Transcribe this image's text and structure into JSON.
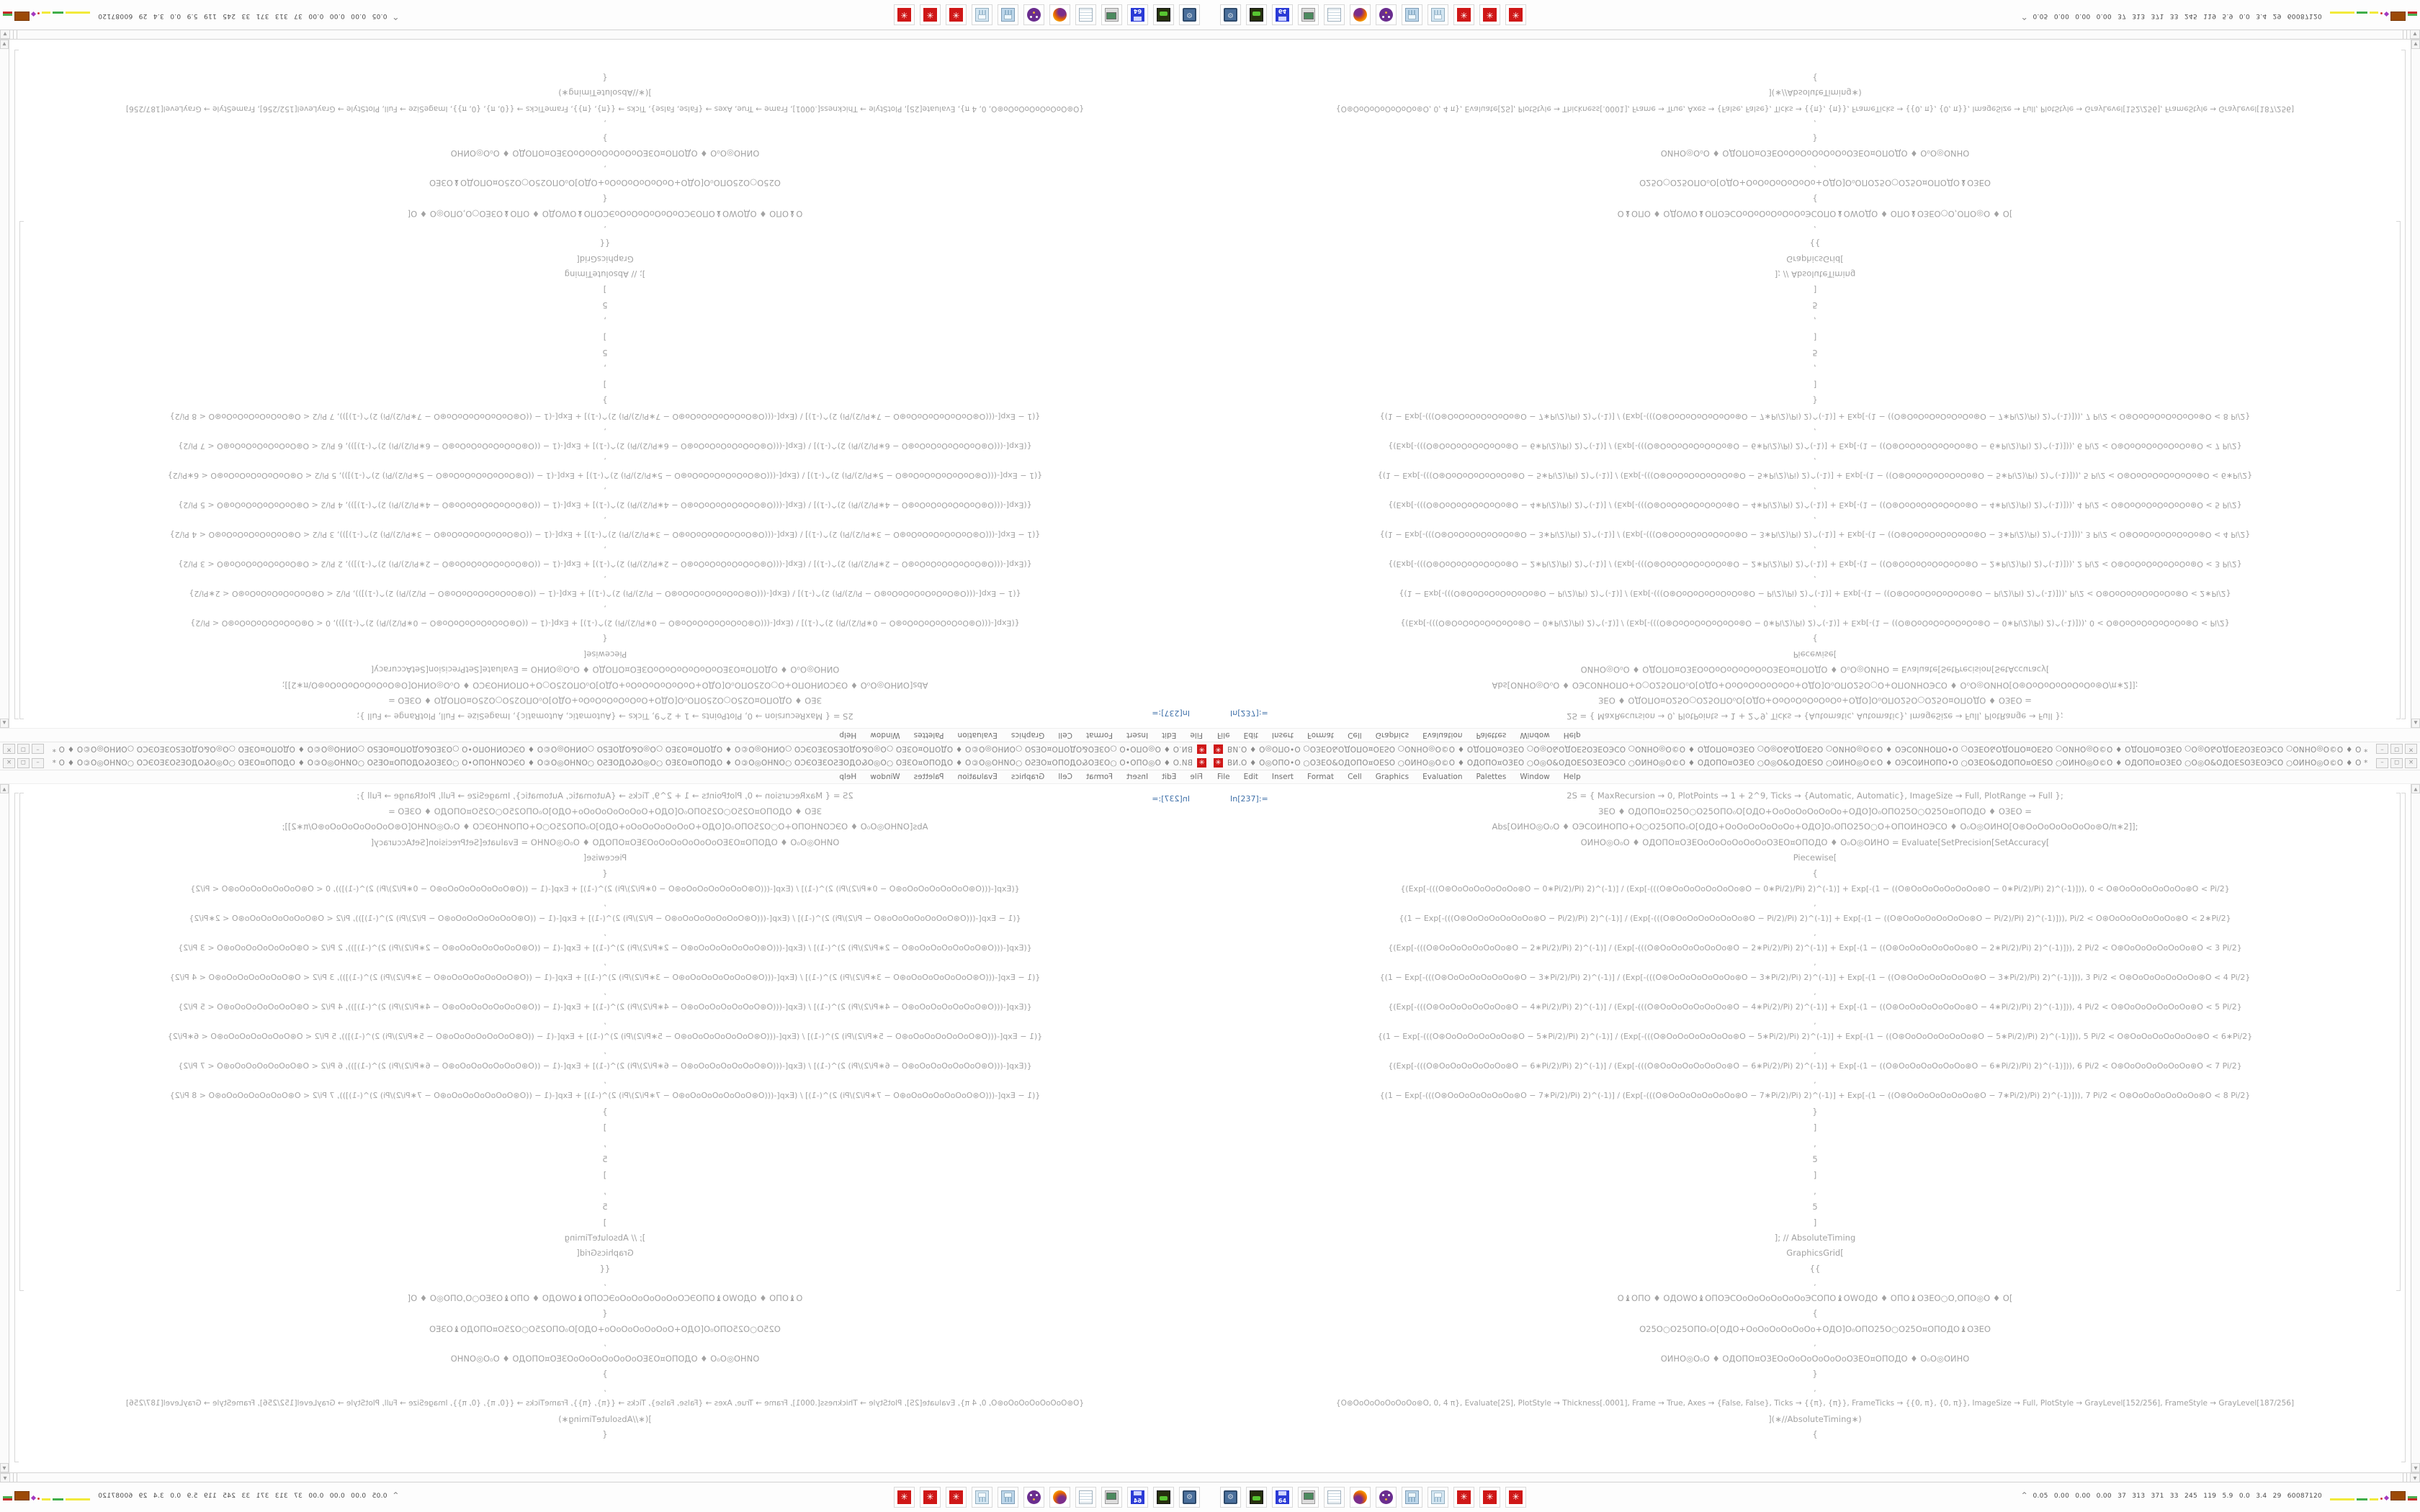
{
  "colors": {
    "accent_red": "#cf1717",
    "in_label_blue": "#3e6fa8",
    "code_gray": "#a2a2a2",
    "titlebar_bg": "#fafafa",
    "meter_yellow": "#f2ea3a",
    "meter_green": "#3fae49",
    "meter_brown": "#9c4a07",
    "meter_red": "#c62828",
    "meter_purple": "#a338c0"
  },
  "window": {
    "icon_glyph": "✳",
    "title_garbled": "ВИ.О ♦ О◎ОΠО•О ○ОЗЕО&ОДОΠО¤ОЕЅО ○ОИНО◎О©О ♦ ОДОΠО¤ОЗЕО ○О◎О&ОДОЕЅОЗЕОЭСО ○ОИНО◎О©О ♦ ОДОΠО¤ОЗЕО ○О◎О&ОДОЕЅО ○ОИНО◎О©О ♦ ОЭСОИНОΠО•О ○ОЗЕО&ОДОΠО¤ОЕЅО ○ОИНО◎О©О ♦ ОДОΠО¤ОЗЕО ○О◎О&ОДОЕЅОЗЕОЭСО ○ОИНО◎О©О ♦ О ",
    "title_suffix": "* - Wolfram Mathematica 12.2",
    "buttons": {
      "minimize": "–",
      "maximize": "◻",
      "close": "×"
    }
  },
  "menu": {
    "items": [
      "File",
      "Edit",
      "Insert",
      "Format",
      "Cell",
      "Graphics",
      "Evaluation",
      "Palettes",
      "Window",
      "Help"
    ]
  },
  "notebook": {
    "cell_label": "In[237]:=",
    "lines": [
      {
        "c": "hdr",
        "t": "2S = {  MaxRecursion → 0, PlotPoints → 1 + 2^9, Ticks → {Automatic, Automatic}, ImageSize → Full, PlotRange → Full  };"
      },
      {
        "c": "hdr",
        "t": "ЗЕО ♦ ОДОΠО¤О25О○О25ОΠО₀О[ОДО+ОоОоОоОоОоОо+ОДО]О₀ОΠО25О○О25О¤ОΠОДО ♦ ОЗЕО  ="
      },
      {
        "c": "hdr",
        "t": "Abs[ОИНО◎О₀О ♦ ОЭСОИНОΠО+О○О25ОΠО₀О[ОДО+ОоОоОоОоОоОо+ОДО]О₀ОΠО25О○О+ОΠОИНОЭСО ♦ О₀О◎ОИНО[О⊛ОоОоОоОоОоОо⊛О/π∗2]];"
      },
      {
        "c": "hdr",
        "t": "ОИНО◎О₀О ♦ ОДОΠО¤ОЗЕОоОоОоОоОоОоОЗЕО¤ОΠОДО ♦ О₀О◎ОИНО = Evaluate[SetPrecision[SetAccuracy["
      },
      {
        "c": "hdr",
        "t": "Piecewise["
      },
      {
        "c": "hdr",
        "t": "{"
      },
      {
        "c": "row",
        "t": "{(Exp[-(((О⊛ОоОоОоОоОоОо⊛О − 0∗Pi/2)/Pi) 2)^(-1)] / (Exp[-(((О⊛ОоОоОоОоОоОо⊛О − 0∗Pi/2)/Pi) 2)^(-1)] + Exp[-(1 − ((О⊛ОоОоОоОоОоОо⊛О − 0∗Pi/2)/Pi) 2)^(-1)])), 0 < О⊛ОоОоОоОоОоОо⊛О < Pi/2}"
      },
      {
        "c": "sep",
        "t": ","
      },
      {
        "c": "row",
        "t": "{(1 − Exp[-(((О⊛ОоОоОоОоОоОо⊛О − Pi/2)/Pi) 2)^(-1)] / (Exp[-(((О⊛ОоОоОоОоОоОо⊛О − Pi/2)/Pi) 2)^(-1)] + Exp[-(1 − ((О⊛ОоОоОоОоОоОо⊛О − Pi/2)/Pi) 2)^(-1)])), Pi/2 < О⊛ОоОоОоОоОоОо⊛О < 2∗Pi/2}"
      },
      {
        "c": "sep",
        "t": ","
      },
      {
        "c": "row",
        "t": "{(Exp[-(((О⊛ОоОоОоОоОоОо⊛О − 2∗Pi/2)/Pi) 2)^(-1)] / (Exp[-(((О⊛ОоОоОоОоОоОо⊛О − 2∗Pi/2)/Pi) 2)^(-1)] + Exp[-(1 − ((О⊛ОоОоОоОоОоОо⊛О − 2∗Pi/2)/Pi) 2)^(-1)])), 2 Pi/2 < О⊛ОоОоОоОоОоОо⊛О < 3 Pi/2}"
      },
      {
        "c": "sep",
        "t": ","
      },
      {
        "c": "row",
        "t": "{(1 − Exp[-(((О⊛ОоОоОоОоОоОо⊛О − 3∗Pi/2)/Pi) 2)^(-1)] / (Exp[-(((О⊛ОоОоОоОоОоОо⊛О − 3∗Pi/2)/Pi) 2)^(-1)] + Exp[-(1 − ((О⊛ОоОоОоОоОоОо⊛О − 3∗Pi/2)/Pi) 2)^(-1)])), 3 Pi/2 < О⊛ОоОоОоОоОоОо⊛О < 4 Pi/2}"
      },
      {
        "c": "sep",
        "t": ","
      },
      {
        "c": "row",
        "t": "{(Exp[-(((О⊛ОоОоОоОоОоОо⊛О − 4∗Pi/2)/Pi) 2)^(-1)] / (Exp[-(((О⊛ОоОоОоОоОоОо⊛О − 4∗Pi/2)/Pi) 2)^(-1)] + Exp[-(1 − ((О⊛ОоОоОоОоОоОо⊛О − 4∗Pi/2)/Pi) 2)^(-1)])), 4 Pi/2 < О⊛ОоОоОоОоОоОо⊛О < 5 Pi/2}"
      },
      {
        "c": "sep",
        "t": ","
      },
      {
        "c": "row",
        "t": "{(1 − Exp[-(((О⊛ОоОоОоОоОоОо⊛О − 5∗Pi/2)/Pi) 2)^(-1)] / (Exp[-(((О⊛ОоОоОоОоОоОо⊛О − 5∗Pi/2)/Pi) 2)^(-1)] + Exp[-(1 − ((О⊛ОоОоОоОоОоОо⊛О − 5∗Pi/2)/Pi) 2)^(-1)])), 5 Pi/2 < О⊛ОоОоОоОоОоОо⊛О < 6∗Pi/2}"
      },
      {
        "c": "sep",
        "t": ","
      },
      {
        "c": "row",
        "t": "{(Exp[-(((О⊛ОоОоОоОоОоОо⊛О − 6∗Pi/2)/Pi) 2)^(-1)] / (Exp[-(((О⊛ОоОоОоОоОоОо⊛О − 6∗Pi/2)/Pi) 2)^(-1)] + Exp[-(1 − ((О⊛ОоОоОоОоОоОо⊛О − 6∗Pi/2)/Pi) 2)^(-1)])), 6 Pi/2 < О⊛ОоОоОоОоОоОо⊛О < 7 Pi/2}"
      },
      {
        "c": "sep",
        "t": ","
      },
      {
        "c": "row",
        "t": "{(1 − Exp[-(((О⊛ОоОоОоОоОоОо⊛О − 7∗Pi/2)/Pi) 2)^(-1)] / (Exp[-(((О⊛ОоОоОоОоОоОо⊛О − 7∗Pi/2)/Pi) 2)^(-1)] + Exp[-(1 − ((О⊛ОоОоОоОоОоОо⊛О − 7∗Pi/2)/Pi) 2)^(-1)])), 7 Pi/2 < О⊛ОоОоОоОоОоОо⊛О < 8 Pi/2}"
      },
      {
        "c": "cls",
        "t": "}"
      },
      {
        "c": "cls",
        "t": "]"
      },
      {
        "c": "cls",
        "t": ","
      },
      {
        "c": "cls",
        "t": "5"
      },
      {
        "c": "cls",
        "t": "]"
      },
      {
        "c": "cls",
        "t": ","
      },
      {
        "c": "cls",
        "t": "5"
      },
      {
        "c": "cls",
        "t": "]"
      },
      {
        "c": "hdr",
        "t": "]; // AbsoluteTiming"
      },
      {
        "c": "hdr",
        "t": "GraphicsGrid["
      },
      {
        "c": "hdr",
        "t": "{{"
      },
      {
        "c": "sep",
        "t": ","
      },
      {
        "c": "hdr",
        "t": "О♝ОΠО ♦ ОДОWО♝ОΠОЭСОоОоОоОоОоОоЭСОΠО♝ОWОДО ♦ ОΠО♝ОЗЕО○О,ОΠО◎О ♦ О["
      },
      {
        "c": "hdr",
        "t": "{"
      },
      {
        "c": "hdr",
        "t": "О25О○О25ОΠО₀О[ОДО+ОоОоОоОоОоОо+ОДО]О₀ОΠО25О○О25О¤ОΠОДО♝ОЗЕО"
      },
      {
        "c": "sep",
        "t": ","
      },
      {
        "c": "hdr",
        "t": "ОИНО◎О₀О ♦ ОДОΠО¤ОЗЕОоОоОоОоОоОоОЗЕО¤ОΠОДО ♦ О₀О◎ОИНО"
      },
      {
        "c": "hdr",
        "t": "}"
      },
      {
        "c": "sep",
        "t": ","
      },
      {
        "c": "big",
        "t": "{О⊛ОоОоОоОоОоОо⊛О, 0, 4 π}, Evaluate[2S], PlotStyle → Thickness[.0001], Frame → True, Axes → {False, False}, Ticks → {{π}, {π}}, FrameTicks → {{0, π}, {0, π}}, ImageSize → Full, PlotStyle → GrayLevel[152/256], FrameStyle → GrayLevel[187/256]"
      },
      {
        "c": "hdr",
        "t": "](∗//AbsoluteTiming∗)"
      },
      {
        "c": "hdr",
        "t": "{"
      }
    ]
  },
  "scrollbars": {
    "up": "▲",
    "down": "▼"
  },
  "taskbar": {
    "tray_arrow": "^",
    "stats": "0.05 0.00 0.00 0.00 37 313 371 33 245 119 5.9 0.0 3.4 29 60087120",
    "icons": [
      {
        "c": "ic-screenshot",
        "t": ""
      },
      {
        "c": "ic-package",
        "t": ""
      },
      {
        "c": "ic-floppy",
        "t": "64"
      },
      {
        "c": "ic-computer",
        "t": ""
      },
      {
        "c": "ic-notepad",
        "t": ""
      },
      {
        "c": "ic-firefox",
        "t": ""
      },
      {
        "c": "ic-owl",
        "t": ""
      },
      {
        "c": "ic-calc",
        "t": ""
      },
      {
        "c": "ic-calc2",
        "t": ""
      },
      {
        "c": "ic-mathematica",
        "t": "✳"
      },
      {
        "c": "ic-mathematica",
        "t": "✳"
      },
      {
        "c": "ic-mathematica",
        "t": "✳"
      }
    ],
    "meters": [
      {
        "c": "m-y1",
        "t": ""
      },
      {
        "c": "m-g1",
        "t": ""
      },
      {
        "c": "m-y2",
        "t": ""
      },
      {
        "c": "m-dot",
        "t": ""
      },
      {
        "c": "m-dia",
        "t": ""
      },
      {
        "c": "m-brown",
        "t": ""
      },
      {
        "c": "m-rg",
        "t": ""
      }
    ]
  }
}
